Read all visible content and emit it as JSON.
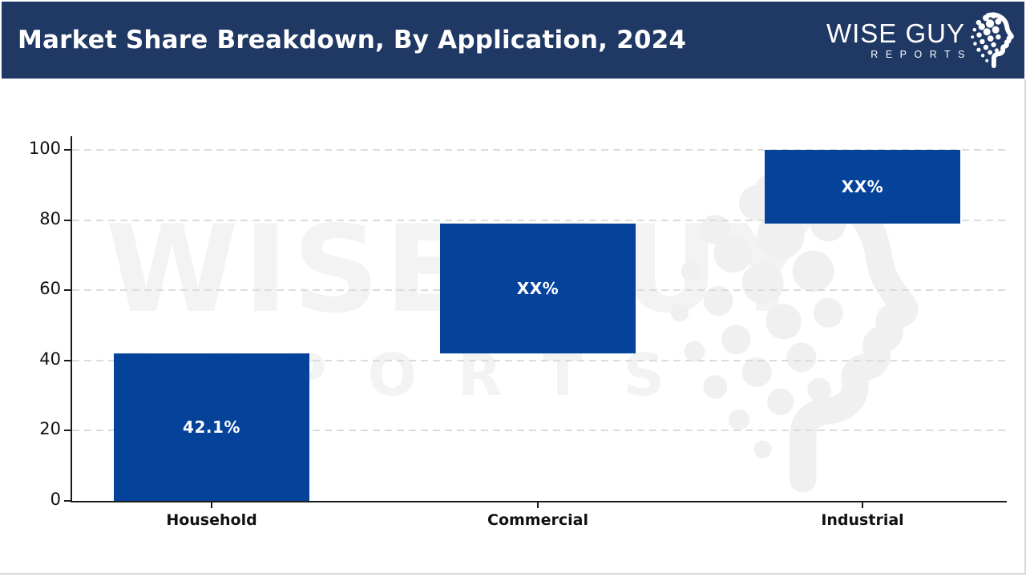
{
  "header": {
    "title": "Market Share Breakdown, By Application, 2024",
    "logo": {
      "wordmark": "WISE GUY",
      "subtext": "REPORTS"
    }
  },
  "watermark": {
    "wordmark": "WISE GUY",
    "subtext": "R E P O R T S"
  },
  "colors": {
    "header_bg": "#1f3864",
    "bar": "#05439b",
    "bar_label": "#ffffff",
    "axis": "#1a1a1a",
    "gridline": "#dcdcdc",
    "watermark": "#f2f2f2"
  },
  "chart_data": {
    "type": "bar",
    "subtype": "stacked-waterfall-percent",
    "title": "Market Share Breakdown, By Application, 2024",
    "categories": [
      "Household",
      "Commercial",
      "Industrial"
    ],
    "bars": [
      {
        "category": "Household",
        "start": 0,
        "end": 42.1,
        "label": "42.1%"
      },
      {
        "category": "Commercial",
        "start": 42.1,
        "end": 79.0,
        "label": "XX%"
      },
      {
        "category": "Industrial",
        "start": 79.0,
        "end": 100,
        "label": "XX%"
      }
    ],
    "xlabel": "",
    "ylabel": "",
    "ylim": [
      0,
      100
    ],
    "yticks": [
      0,
      20,
      40,
      60,
      80,
      100
    ],
    "grid": {
      "horizontal": true,
      "style": "dashed"
    },
    "legend": null
  }
}
